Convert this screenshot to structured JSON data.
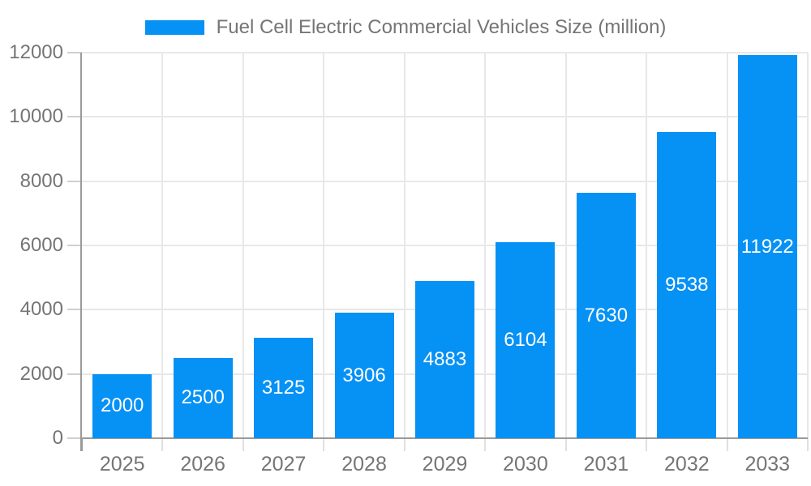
{
  "legend": {
    "label": "Fuel Cell Electric Commercial Vehicles Size (million)"
  },
  "chart_data": {
    "type": "bar",
    "title": "Fuel Cell Electric Commercial Vehicles Size (million)",
    "categories": [
      "2025",
      "2026",
      "2027",
      "2028",
      "2029",
      "2030",
      "2031",
      "2032",
      "2033"
    ],
    "series": [
      {
        "name": "Fuel Cell Electric Commercial Vehicles Size (million)",
        "values": [
          2000,
          2500,
          3125,
          3906,
          4883,
          6104,
          7630,
          9538,
          11922
        ]
      }
    ],
    "bar_labels": [
      "2000",
      "2500",
      "3125",
      "3906",
      "4883",
      "6104",
      "7630",
      "9538",
      "11922"
    ],
    "xlabel": "",
    "ylabel": "",
    "ylim": [
      0,
      12000
    ],
    "y_ticks": [
      0,
      2000,
      4000,
      6000,
      8000,
      10000,
      12000
    ],
    "grid": true,
    "legend_position": "top",
    "bar_value_labels_inside": true
  },
  "colors": {
    "bar": "#0691f5",
    "axis_line": "#9a9a9a",
    "gridline": "#e8e8e8",
    "y_tick_mark": "#cfcfcf",
    "x_tick_mark": "#e0e0e0",
    "tick_text": "#757575",
    "legend_text": "#757575",
    "bar_label_text": "#ffffff",
    "background": "#ffffff"
  }
}
